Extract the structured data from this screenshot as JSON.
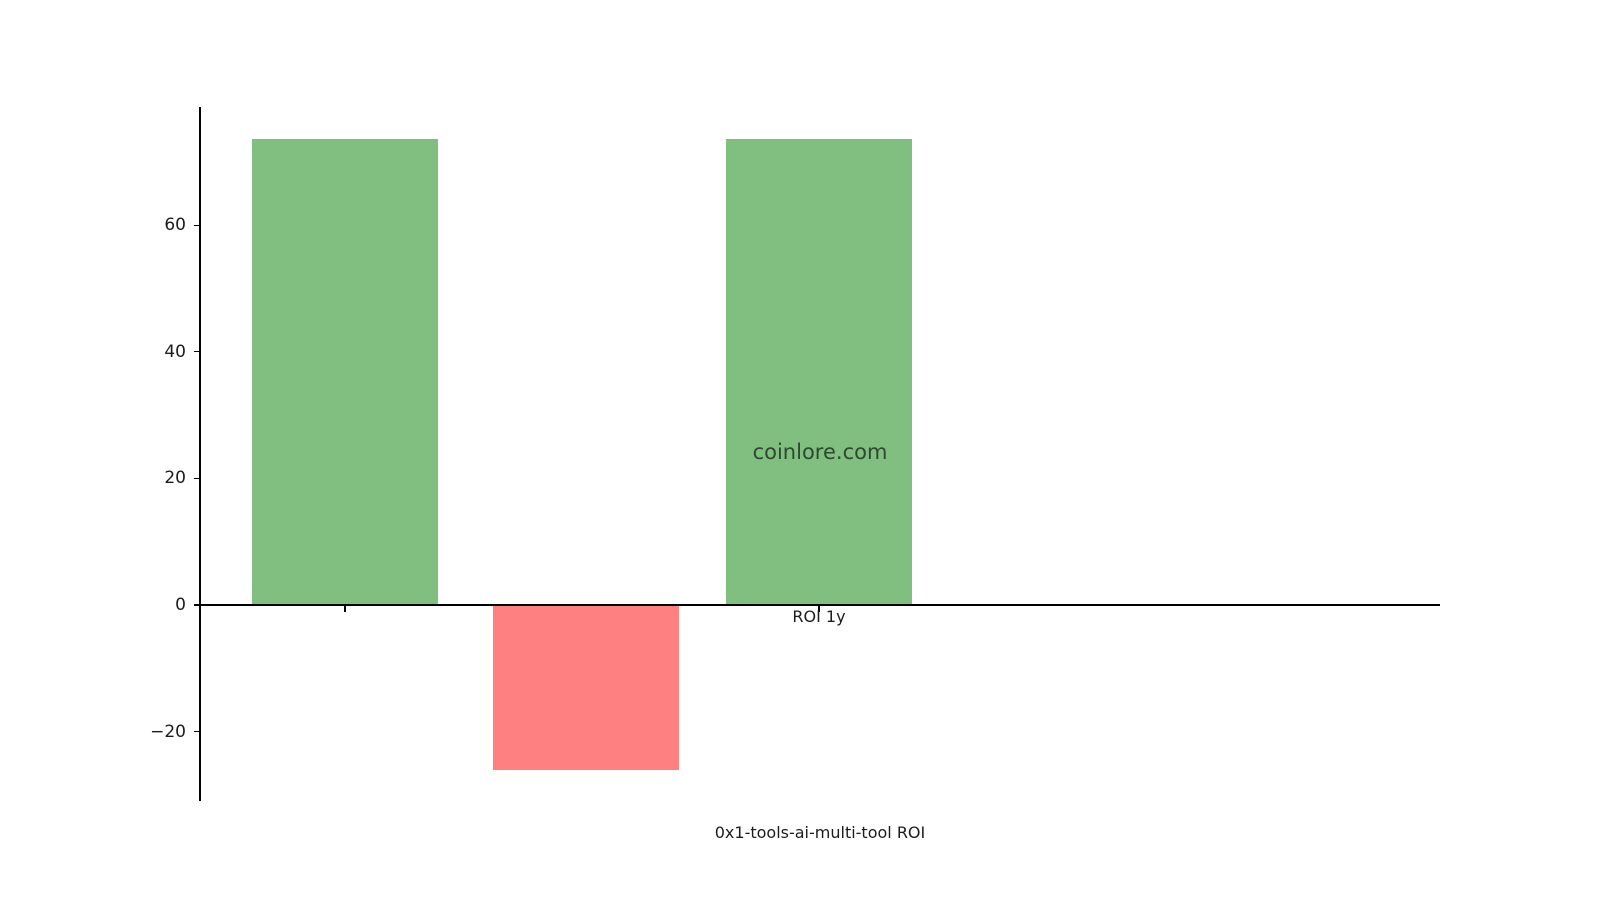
{
  "chart_data": {
    "type": "bar",
    "title": "0x1-tools-ai-multi-tool ROI",
    "title_position": "bottom",
    "watermark": "coinlore.com",
    "categories": [
      "",
      "",
      "ROI 1y"
    ],
    "values": [
      73.6,
      -25.9,
      73.6
    ],
    "bar_colors": [
      "#80bf80",
      "#ff8080",
      "#80bf80"
    ],
    "positive_color": "#80bf80",
    "negative_color": "#ff8080",
    "yticks": [
      {
        "label": "60",
        "value": 60
      },
      {
        "label": "40",
        "value": 40
      },
      {
        "label": "20",
        "value": 20
      },
      {
        "label": "0",
        "value": 0
      },
      {
        "label": "−20",
        "value": -20
      }
    ],
    "ylim": [
      -31,
      79
    ],
    "xlabel": "",
    "ylabel": "",
    "grid": false,
    "legend_position": "none",
    "axis_color": "#000000",
    "text_color": "#1c1c1c",
    "watermark_color": "#2d4a2f",
    "background_color": "#ffffff"
  }
}
